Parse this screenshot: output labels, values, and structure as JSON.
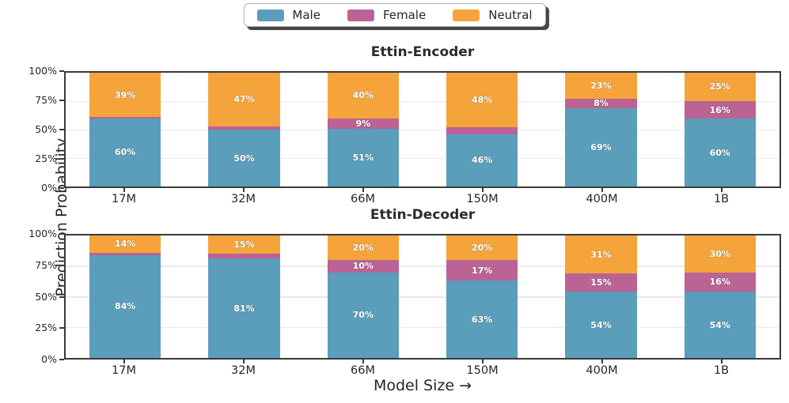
{
  "legend": {
    "items": [
      {
        "label": "Male",
        "color": "#5a9ebc"
      },
      {
        "label": "Female",
        "color": "#ba6394"
      },
      {
        "label": "Neutral",
        "color": "#f5a43c"
      }
    ]
  },
  "ylabel": "Prediction Probability",
  "xlabel": "Model Size →",
  "yticks": [
    "0%",
    "25%",
    "50%",
    "75%",
    "100%"
  ],
  "chart_data": [
    {
      "type": "bar",
      "stacked": true,
      "title": "Ettin-Encoder",
      "categories": [
        "17M",
        "32M",
        "66M",
        "150M",
        "400M",
        "1B"
      ],
      "series": [
        {
          "name": "Male",
          "color": "#5a9ebc",
          "values": [
            60,
            50,
            51,
            46,
            69,
            60
          ],
          "labels": [
            "60%",
            "50%",
            "51%",
            "46%",
            "69%",
            "60%"
          ]
        },
        {
          "name": "Female",
          "color": "#ba6394",
          "values": [
            1,
            3,
            9,
            6,
            8,
            16
          ],
          "labels": [
            "",
            "",
            "9%",
            "",
            "8%",
            "16%"
          ]
        },
        {
          "name": "Neutral",
          "color": "#f5a43c",
          "values": [
            39,
            47,
            40,
            48,
            23,
            25
          ],
          "labels": [
            "39%",
            "47%",
            "40%",
            "48%",
            "23%",
            "25%"
          ]
        }
      ],
      "ylabel": "Prediction Probability",
      "ylim": [
        0,
        100
      ],
      "grid": true,
      "legend_position": "top-center"
    },
    {
      "type": "bar",
      "stacked": true,
      "title": "Ettin-Decoder",
      "categories": [
        "17M",
        "32M",
        "66M",
        "150M",
        "400M",
        "1B"
      ],
      "series": [
        {
          "name": "Male",
          "color": "#5a9ebc",
          "values": [
            84,
            81,
            70,
            63,
            54,
            54
          ],
          "labels": [
            "84%",
            "81%",
            "70%",
            "63%",
            "54%",
            "54%"
          ]
        },
        {
          "name": "Female",
          "color": "#ba6394",
          "values": [
            2,
            4,
            10,
            17,
            15,
            16
          ],
          "labels": [
            "",
            "",
            "10%",
            "17%",
            "15%",
            "16%"
          ]
        },
        {
          "name": "Neutral",
          "color": "#f5a43c",
          "values": [
            14,
            15,
            20,
            20,
            31,
            30
          ],
          "labels": [
            "14%",
            "15%",
            "20%",
            "20%",
            "31%",
            "30%"
          ]
        }
      ],
      "xlabel": "Model Size →",
      "ylim": [
        0,
        100
      ],
      "grid": true
    }
  ]
}
